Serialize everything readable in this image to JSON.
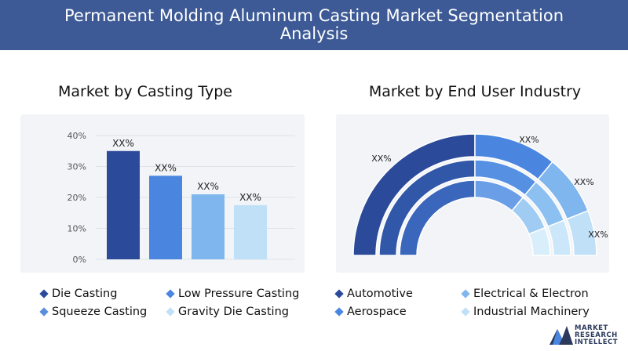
{
  "header": {
    "title": "Permanent Molding Aluminum Casting Market Segmentation Analysis"
  },
  "left_panel": {
    "title": "Market by Casting Type"
  },
  "right_panel": {
    "title": "Market by End User Industry"
  },
  "colors": {
    "header_bg": "#3d5a96",
    "die_casting": "#2c4a9a",
    "low_pressure": "#4a86e0",
    "squeeze": "#7fb6ee",
    "gravity": "#bfe0f7"
  },
  "chart_data": [
    {
      "type": "bar",
      "categories": [
        "Die Casting",
        "Low Pressure Casting",
        "Squeeze Casting",
        "Gravity Die Casting"
      ],
      "values": [
        35,
        27,
        21,
        17.5
      ],
      "data_labels": [
        "XX%",
        "XX%",
        "XX%",
        "XX%"
      ],
      "ylim": [
        0,
        40
      ],
      "yticks": [
        "0%",
        "10%",
        "20%",
        "30%",
        "40%"
      ],
      "grid": true,
      "legend": "bottom"
    },
    {
      "type": "pie",
      "variant": "half-donut, three concentric rings",
      "categories": [
        "Automotive",
        "Electrical & Electron",
        "Aerospace",
        "Industrial Machinery"
      ],
      "values": [
        50,
        22,
        16,
        12
      ],
      "data_labels": [
        "XX%",
        "XX%",
        "XX%",
        "XX%"
      ],
      "legend": "bottom"
    }
  ],
  "legend_left": [
    {
      "label": "Die Casting",
      "icon": "diamond-icon"
    },
    {
      "label": "Low Pressure Casting",
      "icon": "diamond-icon"
    },
    {
      "label": "Squeeze Casting",
      "icon": "diamond-icon"
    },
    {
      "label": "Gravity Die Casting",
      "icon": "diamond-icon"
    }
  ],
  "legend_right": [
    {
      "label": "Automotive",
      "icon": "diamond-icon"
    },
    {
      "label": "Electrical & Electron",
      "icon": "diamond-icon"
    },
    {
      "label": "Aerospace",
      "icon": "diamond-icon"
    },
    {
      "label": "Industrial Machinery",
      "icon": "diamond-icon"
    }
  ],
  "logo": {
    "line1": "MARKET",
    "line2": "RESEARCH",
    "line3": "INTELLECT"
  }
}
